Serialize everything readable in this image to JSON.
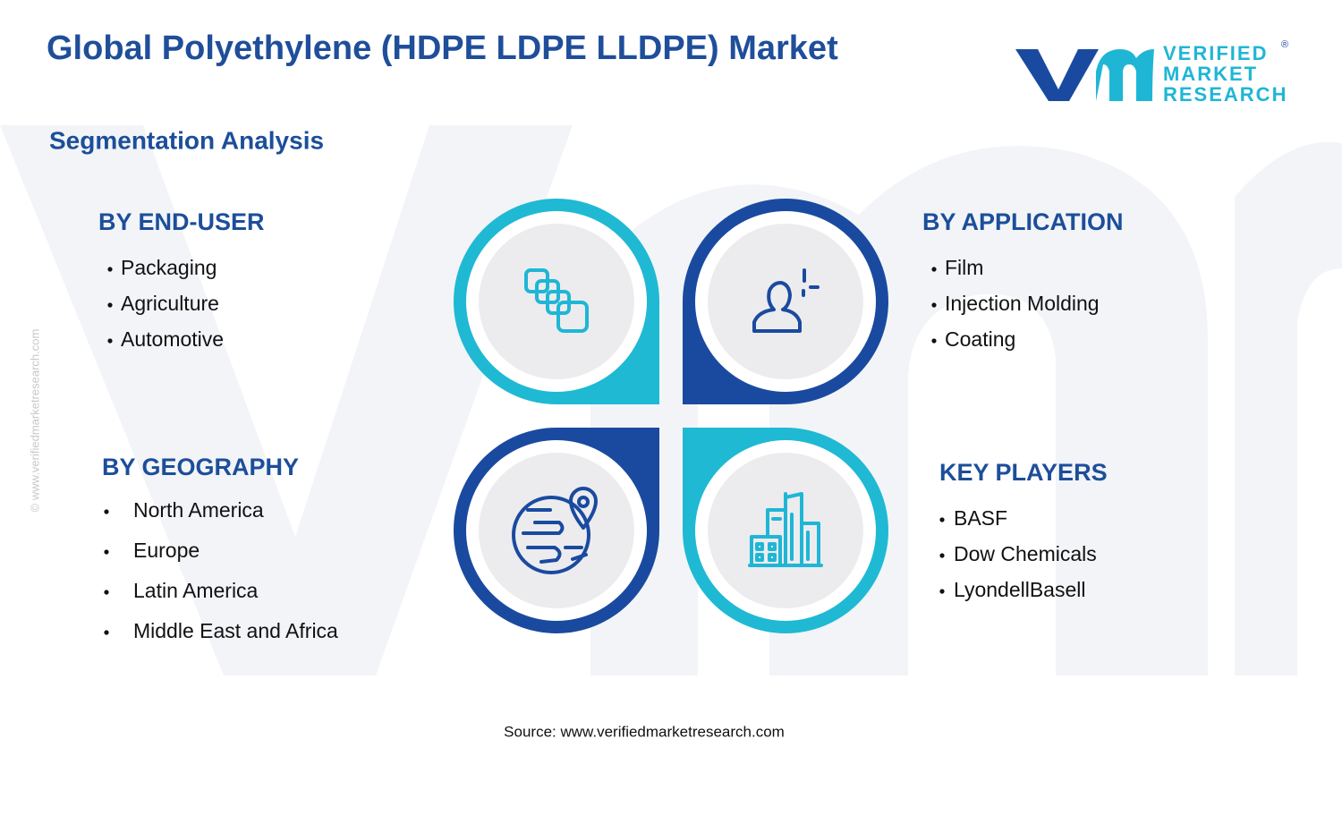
{
  "header": {
    "title": "Global Polyethylene (HDPE LDPE LLDPE) Market",
    "subtitle": "Segmentation Analysis"
  },
  "logo": {
    "line1": "VERIFIED",
    "line2": "MARKET",
    "line3": "RESEARCH",
    "mark": "®"
  },
  "watermark": "© www.verifiedmarketresearch.com",
  "segments": [
    {
      "heading": "BY END-USER",
      "items": [
        "Packaging",
        "Agriculture",
        "Automotive"
      ]
    },
    {
      "heading": "BY APPLICATION",
      "items": [
        "Film",
        "Injection Molding",
        "Coating"
      ]
    },
    {
      "heading": "BY GEOGRAPHY",
      "items": [
        "North America",
        "Europe",
        "Latin America",
        "Middle East and Africa"
      ]
    },
    {
      "heading": "KEY PLAYERS",
      "items": [
        "BASF",
        "Dow Chemicals",
        "LyondellBasell"
      ]
    }
  ],
  "footer": {
    "source": "Source: www.verifiedmarketresearch.com"
  }
}
